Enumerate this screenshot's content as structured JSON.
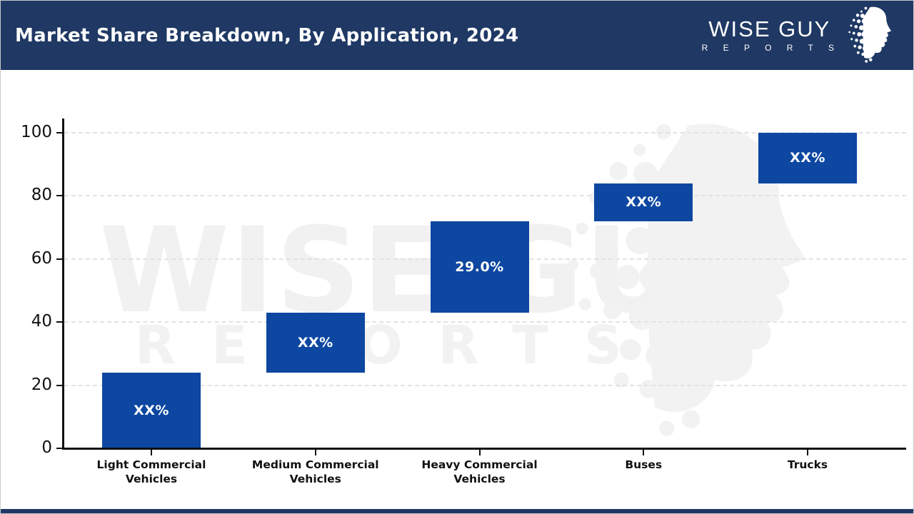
{
  "header": {
    "title": "Market Share Breakdown, By Application, 2024",
    "bg_color": "#1f3864"
  },
  "logo": {
    "line1": "WISE GUY",
    "line2": "R E P O R T S"
  },
  "watermark": {
    "line1": "WISE GUY",
    "line2": "REPORTS"
  },
  "chart_data": {
    "type": "bar",
    "subtype": "floating-waterfall",
    "title": "Market Share Breakdown, By Application, 2024",
    "categories": [
      "Light Commercial Vehicles",
      "Medium Commercial Vehicles",
      "Heavy Commercial Vehicles",
      "Buses",
      "Trucks"
    ],
    "bars": [
      {
        "category": "Light Commercial Vehicles",
        "start": 0,
        "end": 24,
        "label": "XX%"
      },
      {
        "category": "Medium Commercial Vehicles",
        "start": 24,
        "end": 43,
        "label": "XX%"
      },
      {
        "category": "Heavy Commercial Vehicles",
        "start": 43,
        "end": 72,
        "label": "29.0%"
      },
      {
        "category": "Buses",
        "start": 72,
        "end": 84,
        "label": "XX%"
      },
      {
        "category": "Trucks",
        "start": 84,
        "end": 100,
        "label": "XX%"
      }
    ],
    "yticks": [
      0,
      20,
      40,
      60,
      80,
      100
    ],
    "ylim": [
      0,
      105
    ],
    "xlabel": "",
    "ylabel": "",
    "grid": "horizontal-dashed",
    "legend": "none",
    "bar_color": "#0d47a1",
    "bar_label_color": "#ffffff",
    "axis_color": "#111111",
    "gridline_color": "#e2e2e2"
  }
}
